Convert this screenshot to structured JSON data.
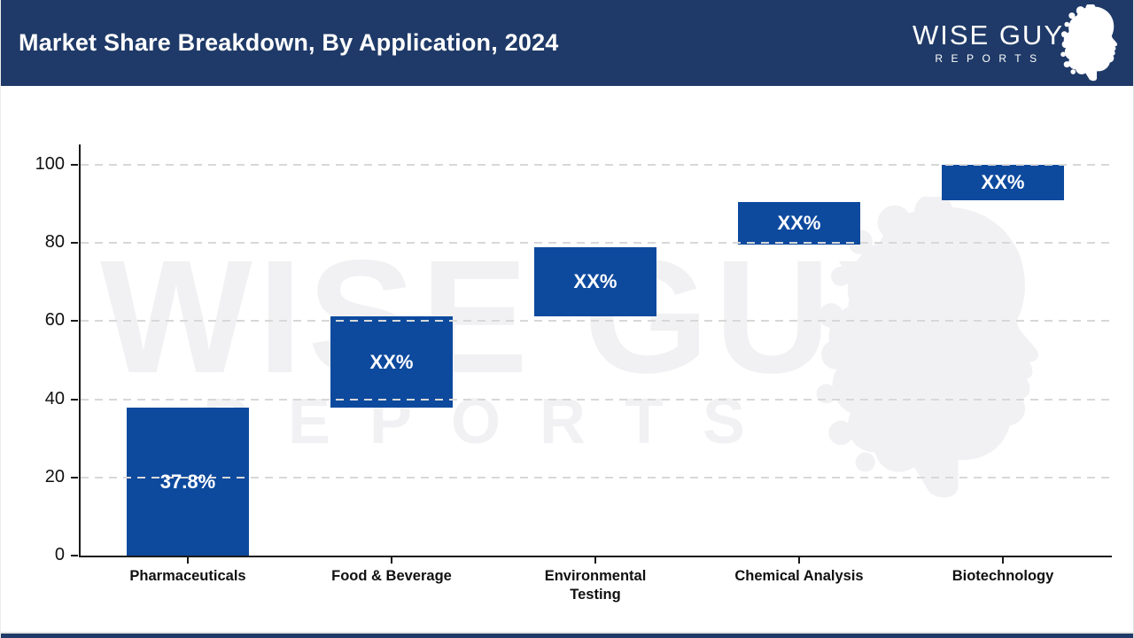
{
  "header": {
    "title": "Market Share Breakdown, By Application, 2024",
    "bg_color": "#1f3a68",
    "logo": {
      "line1": "WISE GUY",
      "line2": "REPORTS"
    }
  },
  "watermark": {
    "line1": "WISE GUY",
    "line2": "REPORTS",
    "color": "#f1f1f3"
  },
  "footer": {
    "bg_color": "#1f3a68"
  },
  "chart_data": {
    "type": "bar",
    "subtype": "floating-segment-waterfall",
    "title": "Market Share Breakdown, By Application, 2024",
    "categories": [
      "Pharmaceuticals",
      "Food & Beverage",
      "Environmental Testing",
      "Chemical Analysis",
      "Biotechnology"
    ],
    "segments": [
      {
        "category": "Pharmaceuticals",
        "start": 0,
        "end": 37.8,
        "label": "37.8%"
      },
      {
        "category": "Food & Beverage",
        "start": 37.8,
        "end": 61.2,
        "label": "XX%"
      },
      {
        "category": "Environmental Testing",
        "start": 61.3,
        "end": 79.0,
        "label": "XX%"
      },
      {
        "category": "Chemical Analysis",
        "start": 79.5,
        "end": 90.5,
        "label": "XX%"
      },
      {
        "category": "Biotechnology",
        "start": 91.0,
        "end": 100.0,
        "label": "XX%"
      }
    ],
    "xlabel": "",
    "ylabel": "",
    "ylim": [
      0,
      100
    ],
    "yticks": [
      0,
      20,
      40,
      60,
      80,
      100
    ],
    "grid": {
      "axis": "y",
      "style": "dashed",
      "color": "#d8d8d8",
      "drawn_above_bars": true
    },
    "bar_color": "#0d4a9e",
    "bar_label_color": "#ffffff",
    "legend": "none"
  }
}
